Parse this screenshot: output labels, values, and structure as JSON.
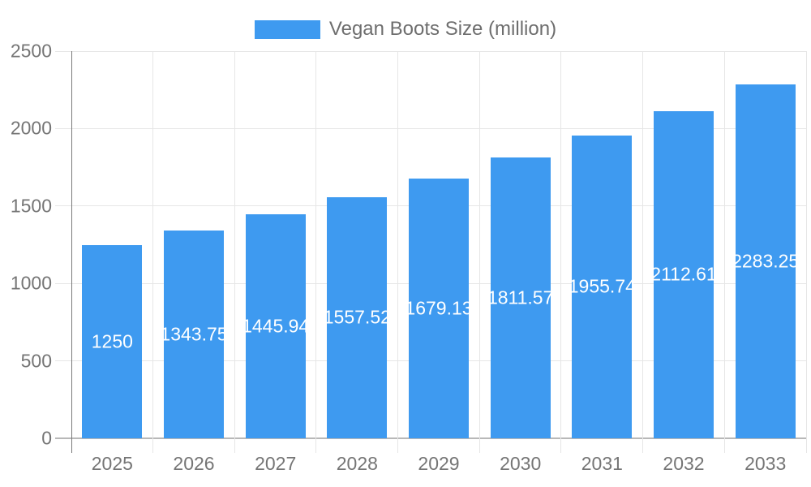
{
  "legend": {
    "label": "Vegan Boots Size (million)"
  },
  "chart_data": {
    "type": "bar",
    "title": "Vegan Boots Size (million)",
    "categories": [
      "2025",
      "2026",
      "2027",
      "2028",
      "2029",
      "2030",
      "2031",
      "2032",
      "2033"
    ],
    "values": [
      1250,
      1343.75,
      1445.94,
      1557.52,
      1679.13,
      1811.57,
      1955.74,
      2112.61,
      2283.25
    ],
    "value_labels": [
      "1250",
      "1343.75",
      "1445.94",
      "1557.52",
      "1679.13",
      "1811.57",
      "1955.74",
      "2112.61",
      "2283.25"
    ],
    "xlabel": "",
    "ylabel": "",
    "ylim": [
      0,
      2500
    ],
    "yticks": [
      0,
      500,
      1000,
      1500,
      2000,
      2500
    ],
    "grid": true,
    "legend_position": "top",
    "colors": {
      "bar": "#3E9AF0",
      "axis_text": "#757575",
      "legend_text": "#6E6E6E",
      "gridline": "#E6E6E6",
      "baseline": "#B8B8B8",
      "axis_line": "#7A7A7A",
      "bar_label_text": "#FFFFFF"
    }
  }
}
